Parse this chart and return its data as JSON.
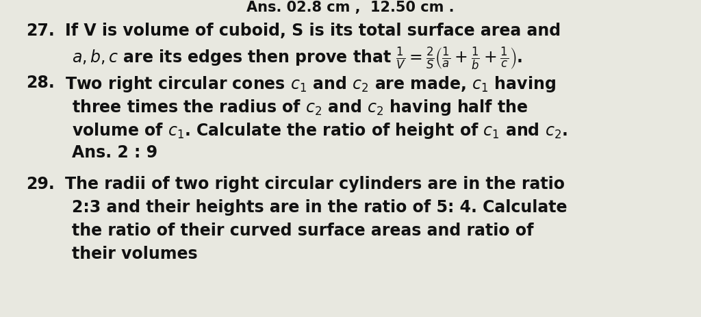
{
  "background_color": "#e8e8e0",
  "text_color": "#111111",
  "top_text": "Ans. 02.8 cm ,  12.50 cm .",
  "fontsize": 17,
  "fontsize_small": 15,
  "items": [
    {
      "num": "27.",
      "line1": "If V is volume of cuboid, S is its total surface area and",
      "line2": "a, b, c are its edges then prove that $\\frac{1}{V}=\\frac{2}{S}\\left(\\frac{1}{a}+\\frac{1}{b}+\\frac{1}{c}\\right)$.",
      "extra_lines": []
    },
    {
      "num": "28.",
      "line1": "Two right circular cones $c_1$ and $c_2$ are made, $c_1$ having",
      "line2": "three times the radius of $c_2$ and $c_2$ having half the",
      "extra_lines": [
        "volume of $c_1$. Calculate the ratio of height of $c_1$ and $c_2$.",
        "Ans. 2 : 9"
      ]
    },
    {
      "num": "29.",
      "line1": "The radii of two right circular cylinders are in the ratio",
      "line2": "2:3 and their heights are in the ratio of 5: 4. Calculate",
      "extra_lines": [
        "the ratio of their curved surface areas and ratio of",
        "their volumes"
      ]
    }
  ]
}
